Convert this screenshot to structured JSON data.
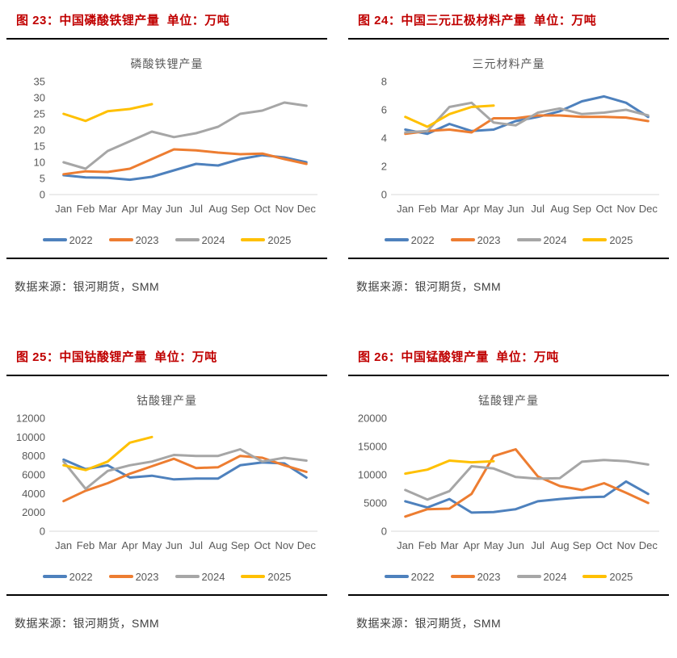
{
  "palette": {
    "caption_red": "#C00000",
    "axis_text": "#595959",
    "baseline": "#D9D9D9",
    "series_blue": "#4E81BD",
    "series_orange": "#ED7D31",
    "series_gray": "#A6A6A6",
    "series_yellow": "#FFC000"
  },
  "chart_data": [
    {
      "type": "line",
      "caption": "图 23：中国磷酸铁锂产量  单位：万吨",
      "title": "磷酸铁锂产量",
      "source": "数据来源：银河期货，SMM",
      "categories": [
        "Jan",
        "Feb",
        "Mar",
        "Apr",
        "May",
        "Jun",
        "Jul",
        "Aug",
        "Sep",
        "Oct",
        "Nov",
        "Dec"
      ],
      "ylim": [
        0,
        35
      ],
      "ytick_step": 5,
      "grid": false,
      "legend_position": "bottom",
      "series": [
        {
          "name": "2022",
          "color": "#4E81BD",
          "values": [
            6,
            5.3,
            5.2,
            4.6,
            5.5,
            7.5,
            9.5,
            9,
            11,
            12.2,
            11.5,
            10
          ]
        },
        {
          "name": "2023",
          "color": "#ED7D31",
          "values": [
            6.3,
            7.2,
            7,
            8,
            11,
            14,
            13.7,
            13,
            12.5,
            12.7,
            11,
            9.5
          ]
        },
        {
          "name": "2024",
          "color": "#A6A6A6",
          "values": [
            10,
            8,
            13.5,
            16.5,
            19.5,
            17.8,
            19,
            21,
            25,
            26,
            28.5,
            27.5
          ]
        },
        {
          "name": "2025",
          "color": "#FFC000",
          "values": [
            25,
            22.8,
            25.8,
            26.5,
            28
          ]
        }
      ]
    },
    {
      "type": "line",
      "caption": "图 24：中国三元正极材料产量  单位：万吨",
      "title": "三元材料产量",
      "source": "数据来源：银河期货，SMM",
      "categories": [
        "Jan",
        "Feb",
        "Mar",
        "Apr",
        "May",
        "Jun",
        "Jul",
        "Aug",
        "Sep",
        "Oct",
        "Nov",
        "Dec"
      ],
      "ylim": [
        0,
        8
      ],
      "ytick_step": 2,
      "grid": false,
      "legend_position": "bottom",
      "series": [
        {
          "name": "2022",
          "color": "#4E81BD",
          "values": [
            4.6,
            4.3,
            5.0,
            4.5,
            4.6,
            5.2,
            5.5,
            5.9,
            6.6,
            6.95,
            6.5,
            5.5
          ]
        },
        {
          "name": "2023",
          "color": "#ED7D31",
          "values": [
            4.3,
            4.5,
            4.6,
            4.4,
            5.4,
            5.4,
            5.6,
            5.6,
            5.5,
            5.5,
            5.45,
            5.2
          ]
        },
        {
          "name": "2024",
          "color": "#A6A6A6",
          "values": [
            4.4,
            4.5,
            6.2,
            6.5,
            5.1,
            4.9,
            5.8,
            6.1,
            5.7,
            5.8,
            6.0,
            5.6
          ]
        },
        {
          "name": "2025",
          "color": "#FFC000",
          "values": [
            5.5,
            4.8,
            5.7,
            6.2,
            6.3
          ]
        }
      ]
    },
    {
      "type": "line",
      "caption": "图 25：中国钴酸锂产量  单位：万吨",
      "title": "钴酸锂产量",
      "source": "数据来源：银河期货，SMM",
      "categories": [
        "Jan",
        "Feb",
        "Mar",
        "Apr",
        "May",
        "Jun",
        "Jul",
        "Aug",
        "Sep",
        "Oct",
        "Nov",
        "Dec"
      ],
      "ylim": [
        0,
        12000
      ],
      "ytick_step": 2000,
      "grid": false,
      "legend_position": "bottom",
      "series": [
        {
          "name": "2022",
          "color": "#4E81BD",
          "values": [
            7600,
            6600,
            7000,
            5700,
            5900,
            5500,
            5600,
            5600,
            7000,
            7300,
            7200,
            5700
          ]
        },
        {
          "name": "2023",
          "color": "#ED7D31",
          "values": [
            3200,
            4300,
            5100,
            6100,
            6900,
            7700,
            6700,
            6800,
            8000,
            7800,
            7000,
            6300
          ]
        },
        {
          "name": "2024",
          "color": "#A6A6A6",
          "values": [
            7400,
            4500,
            6400,
            7000,
            7400,
            8100,
            8000,
            8000,
            8700,
            7400,
            7800,
            7500
          ]
        },
        {
          "name": "2025",
          "color": "#FFC000",
          "values": [
            7000,
            6500,
            7400,
            9400,
            10000
          ]
        }
      ]
    },
    {
      "type": "line",
      "caption": "图 26：中国锰酸锂产量  单位：万吨",
      "title": "锰酸锂产量",
      "source": "数据来源：银河期货，SMM",
      "categories": [
        "Jan",
        "Feb",
        "Mar",
        "Apr",
        "May",
        "Jun",
        "Jul",
        "Aug",
        "Sep",
        "Oct",
        "Nov",
        "Dec"
      ],
      "ylim": [
        0,
        20000
      ],
      "ytick_step": 5000,
      "grid": false,
      "legend_position": "bottom",
      "series": [
        {
          "name": "2022",
          "color": "#4E81BD",
          "values": [
            5300,
            4200,
            5700,
            3300,
            3400,
            3900,
            5300,
            5700,
            6000,
            6100,
            8800,
            6600
          ]
        },
        {
          "name": "2023",
          "color": "#ED7D31",
          "values": [
            2600,
            3900,
            4000,
            6600,
            13300,
            14500,
            9700,
            8000,
            7300,
            8500,
            6800,
            5000
          ]
        },
        {
          "name": "2024",
          "color": "#A6A6A6",
          "values": [
            7300,
            5600,
            7100,
            11500,
            11100,
            9600,
            9300,
            9400,
            12300,
            12600,
            12400,
            11800
          ]
        },
        {
          "name": "2025",
          "color": "#FFC000",
          "values": [
            10200,
            10900,
            12500,
            12200,
            12400
          ]
        }
      ]
    }
  ]
}
